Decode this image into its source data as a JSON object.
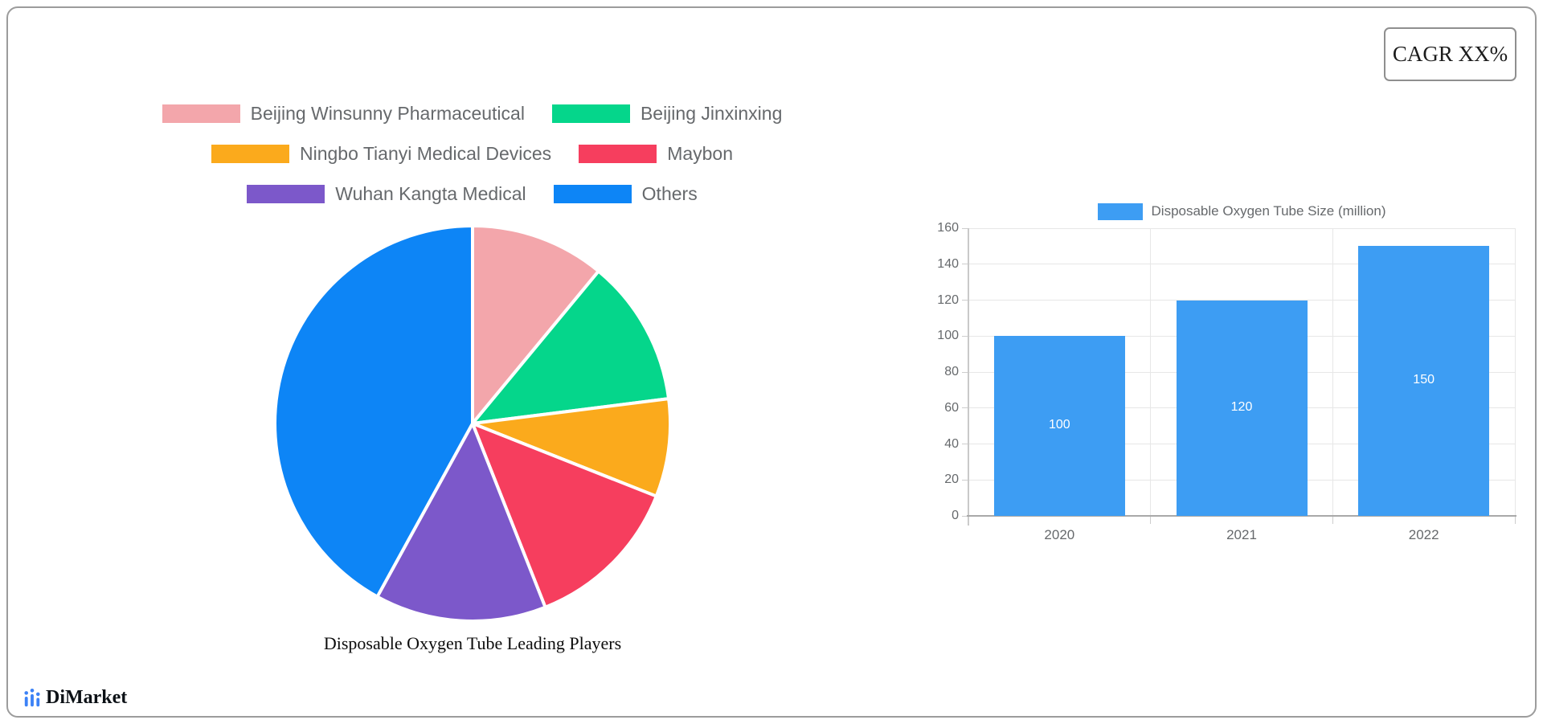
{
  "page": {
    "cagr_label": "CAGR XX%",
    "brand_name": "DiMarket"
  },
  "chart_data": [
    {
      "type": "pie",
      "title": "Disposable Oxygen Tube Leading Players",
      "legend_position": "top",
      "start_angle": "12 o'clock, clockwise",
      "values_are_estimated_share_percent": true,
      "series": [
        {
          "label": "Beijing Winsunny Pharmaceutical",
          "value": 11,
          "color": "#F3A6AB"
        },
        {
          "label": "Beijing Jinxinxing",
          "value": 12,
          "color": "#05D68B"
        },
        {
          "label": "Ningbo Tianyi Medical Devices",
          "value": 8,
          "color": "#FBAA1C"
        },
        {
          "label": "Maybon",
          "value": 13,
          "color": "#F63E5E"
        },
        {
          "label": "Wuhan Kangta Medical",
          "value": 14,
          "color": "#7C58CA"
        },
        {
          "label": "Others",
          "value": 42,
          "color": "#0D85F6"
        }
      ]
    },
    {
      "type": "bar",
      "legend": "Disposable Oxygen Tube Size (million)",
      "legend_position": "top",
      "categories": [
        "2020",
        "2021",
        "2022"
      ],
      "values": [
        100,
        120,
        150
      ],
      "bar_color": "#3D9DF3",
      "value_label_color": "#FFFFFF",
      "ylim": [
        0,
        160
      ],
      "ytick_step": 20,
      "yticks": [
        0,
        20,
        40,
        60,
        80,
        100,
        120,
        140,
        160
      ],
      "grid": true
    }
  ]
}
